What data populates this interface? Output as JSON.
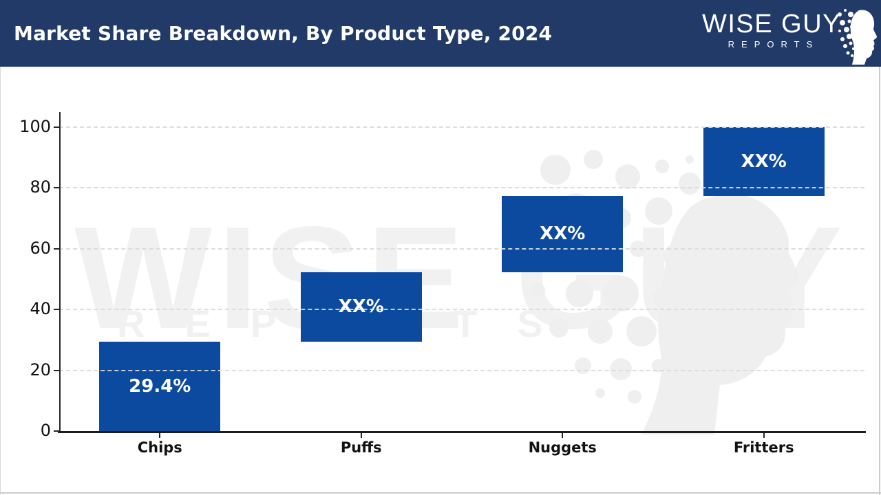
{
  "header": {
    "title": "Market Share Breakdown, By Product Type, 2024",
    "logo": {
      "brand_line1": "WISE GUY",
      "brand_line2": "REPORTS"
    }
  },
  "watermark": {
    "line1": "WISE GUY",
    "line2": "REPORTS"
  },
  "chart_data": {
    "type": "bar",
    "variant": "waterfall",
    "title": "Market Share Breakdown, By Product Type, 2024",
    "categories": [
      "Chips",
      "Puffs",
      "Nuggets",
      "Fritters"
    ],
    "segments": [
      {
        "category": "Chips",
        "start": 0,
        "end": 29.4,
        "label": "29.4%"
      },
      {
        "category": "Puffs",
        "start": 29.4,
        "end": 52.3,
        "label": "XX%"
      },
      {
        "category": "Nuggets",
        "start": 52.3,
        "end": 77.4,
        "label": "XX%"
      },
      {
        "category": "Fritters",
        "start": 77.4,
        "end": 100,
        "label": "XX%"
      }
    ],
    "xlabel": "",
    "ylabel": "",
    "ylim": [
      0,
      100
    ],
    "yticks": [
      0,
      20,
      40,
      60,
      80,
      100
    ],
    "grid": true,
    "legend": false,
    "bar_color": "#0C4AA0",
    "bar_label_color": "#FFFFFF",
    "axis_color": "#262626",
    "grid_color": "#DBDBDB"
  },
  "colors": {
    "header_bg": "#213A68",
    "watermark": "#F1F1F1"
  }
}
